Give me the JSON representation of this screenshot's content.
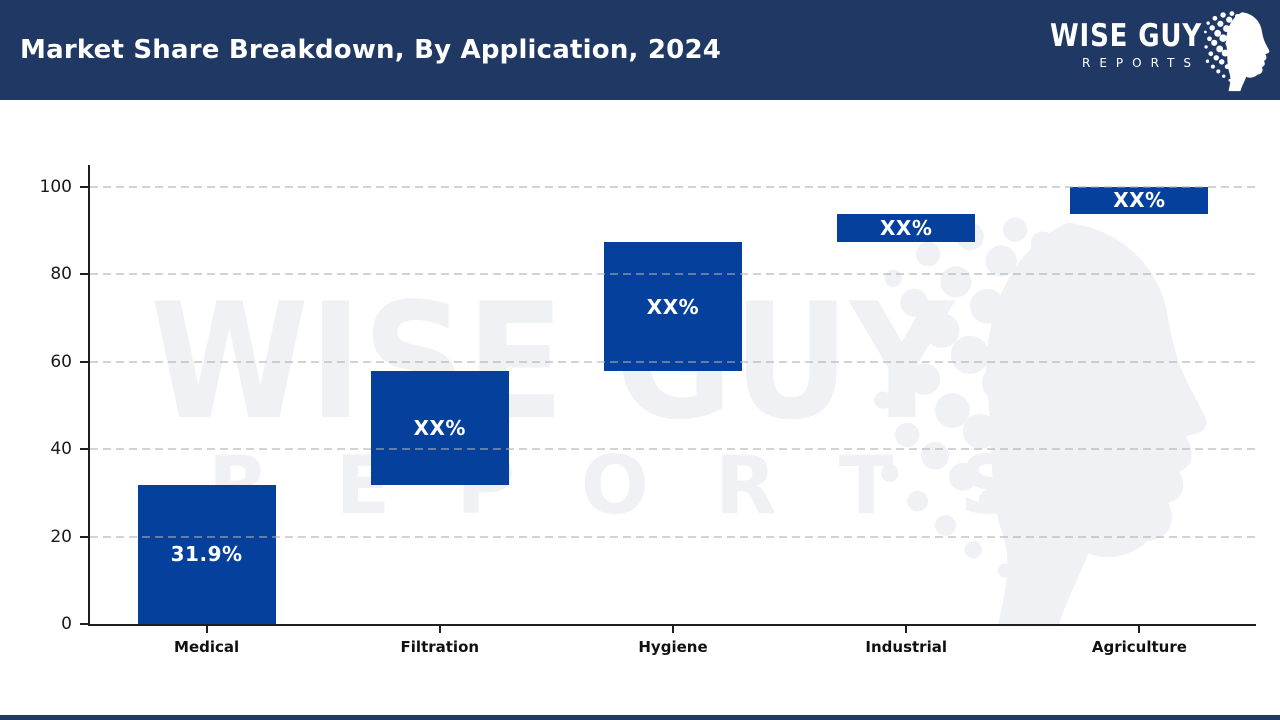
{
  "header": {
    "title": "Market Share Breakdown, By Application, 2024",
    "logo": {
      "line1": "WISE GUY",
      "line2": "REPORTS"
    }
  },
  "watermark": {
    "line1": "WISE GUY",
    "line2": "REPORTS"
  },
  "chart_data": {
    "type": "bar",
    "subtype": "floating-segment waterfall bars",
    "title": "Market Share Breakdown, By Application, 2024",
    "categories": [
      "Medical",
      "Filtration",
      "Hygiene",
      "Industrial",
      "Agriculture"
    ],
    "segments": [
      {
        "category": "Medical",
        "start": 0,
        "end": 31.9,
        "label": "31.9%"
      },
      {
        "category": "Filtration",
        "start": 31.9,
        "end": 57.8,
        "label": "XX%"
      },
      {
        "category": "Hygiene",
        "start": 57.8,
        "end": 87.5,
        "label": "XX%"
      },
      {
        "category": "Industrial",
        "start": 87.5,
        "end": 93.9,
        "label": "XX%"
      },
      {
        "category": "Agriculture",
        "start": 93.9,
        "end": 100,
        "label": "XX%"
      }
    ],
    "value_labels": [
      "31.9%",
      "XX%",
      "XX%",
      "XX%",
      "XX%"
    ],
    "yticks": [
      0,
      20,
      40,
      60,
      80,
      100
    ],
    "ylim": [
      0,
      105
    ],
    "xlabel": "",
    "ylabel": "",
    "grid": "horizontal dashed",
    "legend": "none",
    "bar_color": "#05419c",
    "value_label_color": "#ffffff"
  },
  "colors": {
    "header_bg": "#203864",
    "footer_bg": "#203864",
    "bar": "#05419c",
    "axis": "#1f1f1f",
    "gridline": "#d3d3d3",
    "watermark": "#f0f1f4"
  }
}
